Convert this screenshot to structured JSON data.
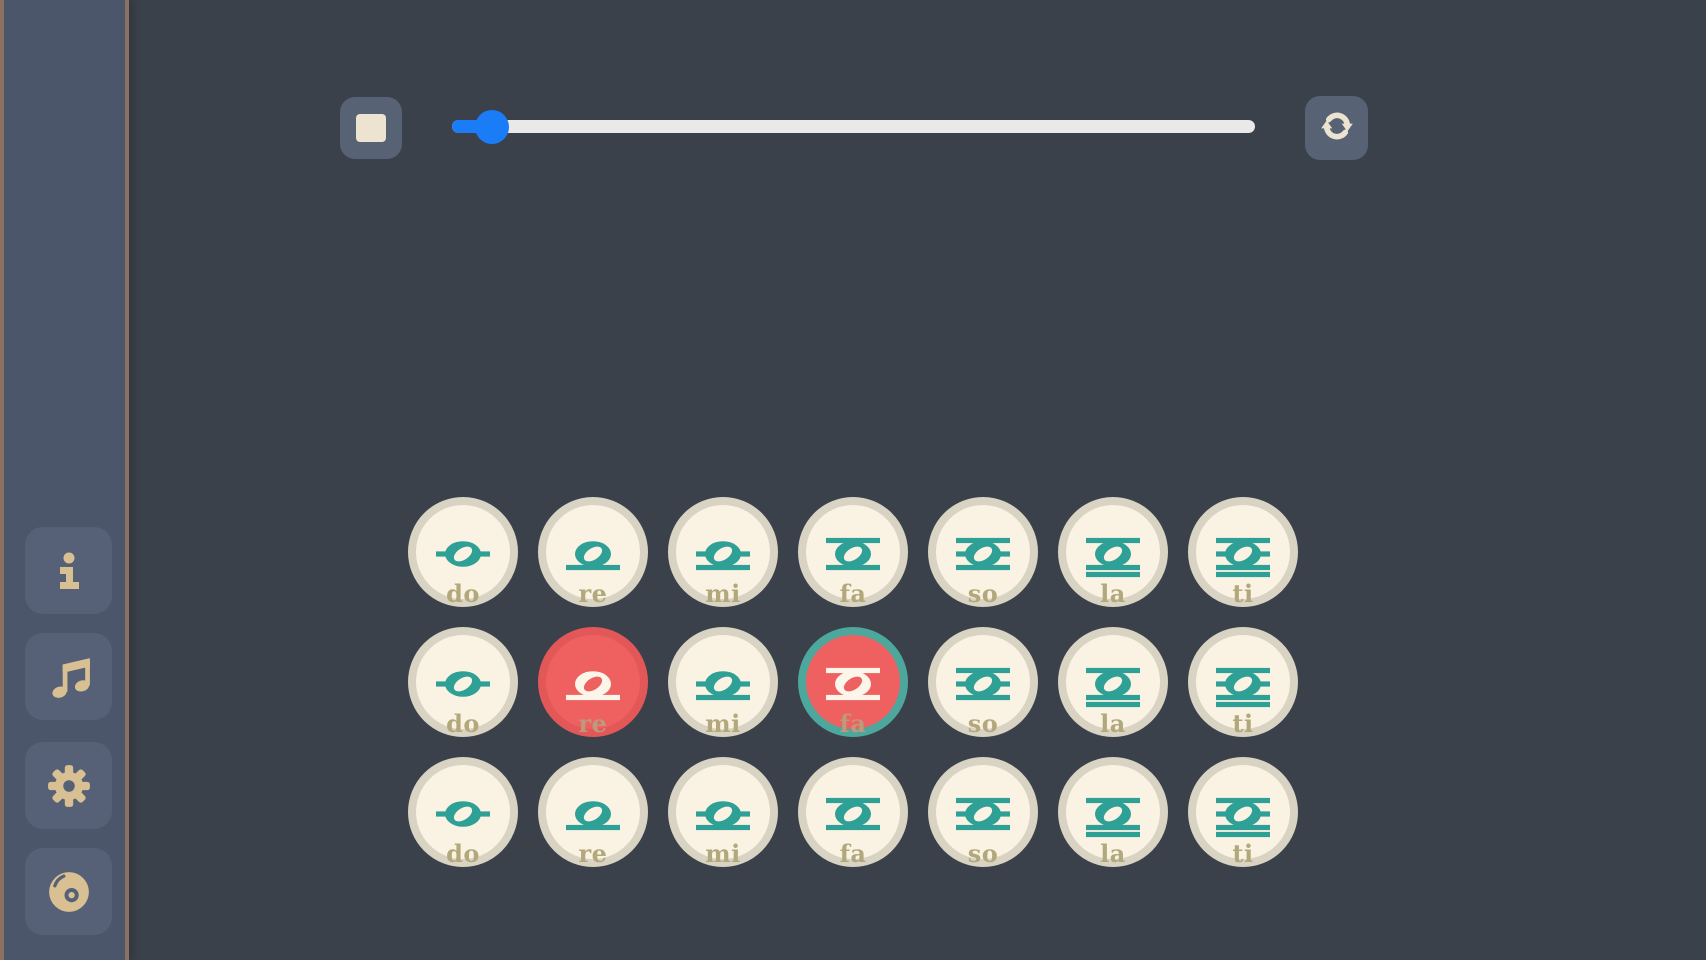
{
  "colors": {
    "background": "#3a414b",
    "sidebar_bg": "#4c566a",
    "sidebar_border_brown": "#8b7162",
    "sidebar_button_bg": "#566178",
    "icon_tan": "#d8c092",
    "transport_button_bg": "#576274",
    "transport_icon_cream": "#ece3d1",
    "slider_track": "#e9e9e9",
    "slider_thumb_blue": "#1b7cf8",
    "circle_fill": "#faf3e4",
    "circle_ring": "#d8d3c2",
    "note_teal": "#2fa096",
    "note_on_red": "#fcf6ea",
    "label_tan": "#b2a87c",
    "selected_red_fill": "#ef6161",
    "selected_red_ring": "#e25757",
    "selected_teal_ring": "#4da79c"
  },
  "sidebar": {
    "items": [
      {
        "id": "info",
        "icon": "info-icon"
      },
      {
        "id": "music",
        "icon": "music-note-icon"
      },
      {
        "id": "settings",
        "icon": "gear-icon"
      },
      {
        "id": "recording",
        "icon": "disc-icon"
      }
    ]
  },
  "transport": {
    "stop": {
      "icon": "stop-square-icon"
    },
    "slider": {
      "progress_percent": 2.5
    },
    "repeat": {
      "icon": "sync-icon"
    }
  },
  "note_grid": {
    "solfege_labels": [
      "do",
      "re",
      "mi",
      "fa",
      "so",
      "la",
      "ti"
    ],
    "glyph_staff_lines": {
      "do": [
        0
      ],
      "re": [
        13.5
      ],
      "mi": [
        0,
        13.5
      ],
      "fa": [
        -13.5,
        13.5
      ],
      "so": [
        -13.5,
        0,
        13.5
      ],
      "la": [
        -13.5,
        13.5,
        20.5
      ],
      "ti": [
        -13.5,
        0,
        13.5,
        20.5
      ]
    },
    "rows": [
      {
        "cells": [
          {
            "note": "do",
            "state": "default"
          },
          {
            "note": "re",
            "state": "default"
          },
          {
            "note": "mi",
            "state": "default"
          },
          {
            "note": "fa",
            "state": "default"
          },
          {
            "note": "so",
            "state": "default"
          },
          {
            "note": "la",
            "state": "default"
          },
          {
            "note": "ti",
            "state": "default"
          }
        ]
      },
      {
        "cells": [
          {
            "note": "do",
            "state": "default"
          },
          {
            "note": "re",
            "state": "red"
          },
          {
            "note": "mi",
            "state": "default"
          },
          {
            "note": "fa",
            "state": "red-teal"
          },
          {
            "note": "so",
            "state": "default"
          },
          {
            "note": "la",
            "state": "default"
          },
          {
            "note": "ti",
            "state": "default"
          }
        ]
      },
      {
        "cells": [
          {
            "note": "do",
            "state": "default"
          },
          {
            "note": "re",
            "state": "default"
          },
          {
            "note": "mi",
            "state": "default"
          },
          {
            "note": "fa",
            "state": "default"
          },
          {
            "note": "so",
            "state": "default"
          },
          {
            "note": "la",
            "state": "default"
          },
          {
            "note": "ti",
            "state": "default"
          }
        ]
      }
    ]
  }
}
